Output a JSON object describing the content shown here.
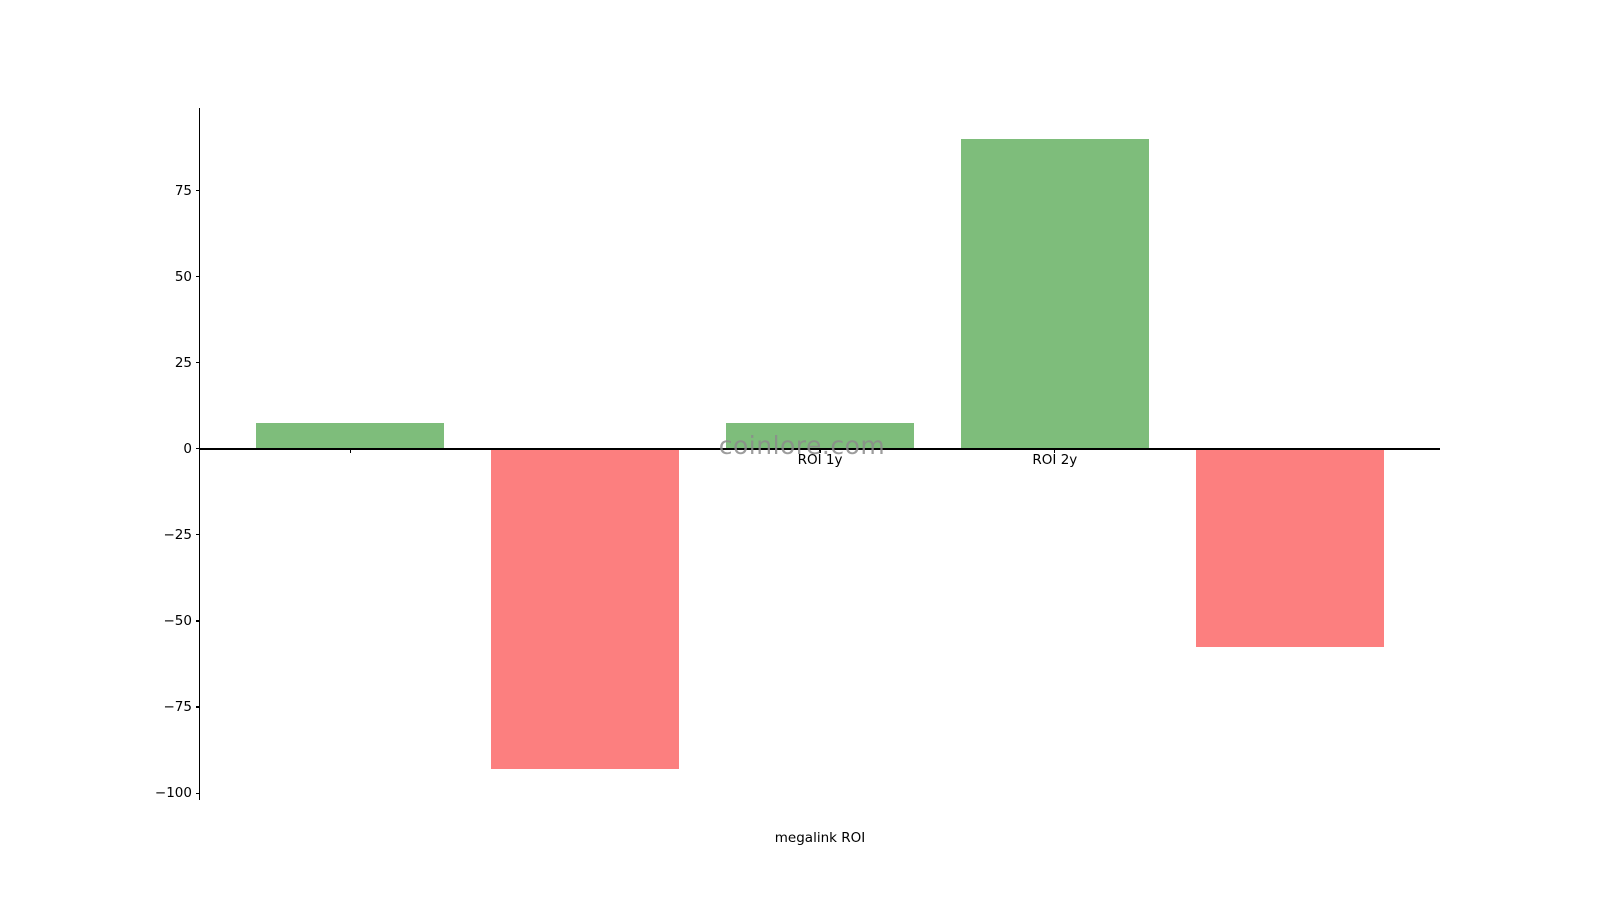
{
  "chart_data": {
    "type": "bar",
    "categories": [
      "",
      "",
      "ROI 1y",
      "ROI 2y",
      ""
    ],
    "values": [
      7.5,
      -93,
      7.5,
      90,
      -57.5
    ],
    "bar_colors": [
      "#7ebd7b",
      "#fc7f7f",
      "#7ebd7b",
      "#7ebd7b",
      "#fc7f7f"
    ],
    "series_note": "positive bars green, negative bars red",
    "title": "",
    "xlabel": "megalink ROI",
    "ylabel": "",
    "yticks": [
      75,
      50,
      25,
      0,
      -25,
      -50,
      -75,
      -100
    ],
    "ylim": [
      -102,
      99
    ],
    "xlim": [
      -0.64,
      4.64
    ],
    "xticks": [
      {
        "position": 0,
        "label": ""
      },
      {
        "position": 2,
        "label": "ROI 1y"
      },
      {
        "position": 3,
        "label": "ROI 2y"
      }
    ],
    "bar_width_units": 0.8,
    "grid": false,
    "legend": false,
    "watermark": "coinlore.com",
    "colors": {
      "positive": "#7ebd7b",
      "negative": "#fc7f7f",
      "axis": "#000000",
      "watermark": "#8c8c8c",
      "background": "#ffffff"
    }
  }
}
